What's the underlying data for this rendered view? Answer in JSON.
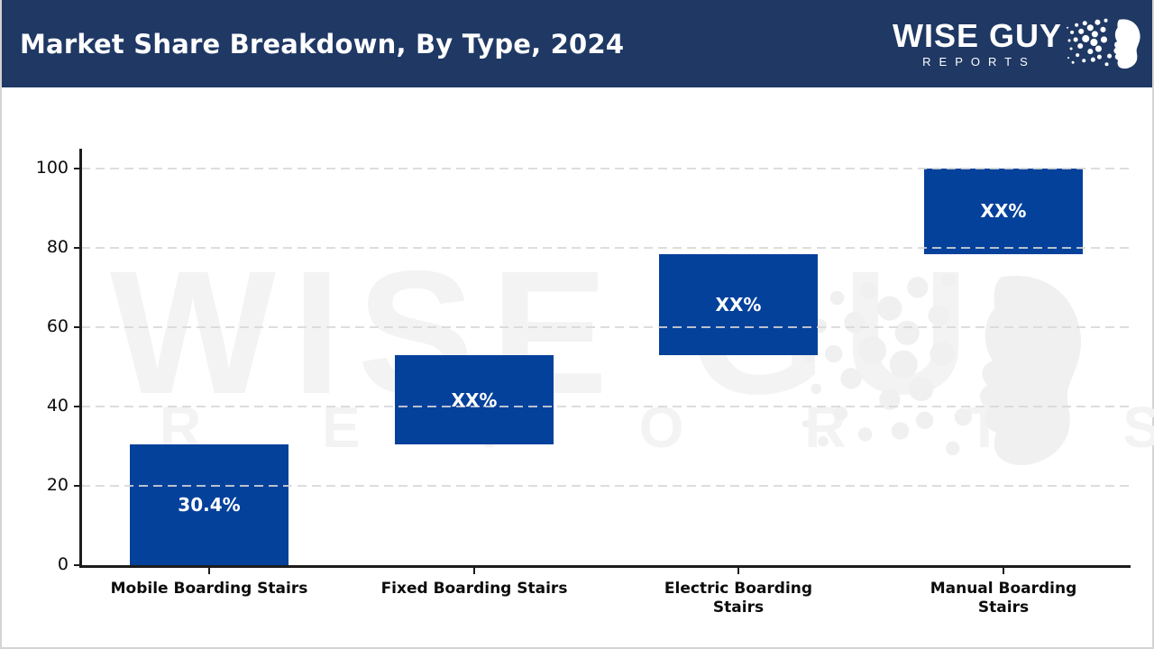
{
  "header": {
    "title": "Market Share Breakdown, By Type, 2024",
    "bg_color": "#1f3864",
    "logo": {
      "line1": "WISE GUY",
      "line2": "REPORTS"
    }
  },
  "watermark": {
    "line1": "WISE GU",
    "line2": "R E P O R T S"
  },
  "chart_data": {
    "type": "bar",
    "subtype": "waterfall",
    "title": "Market Share Breakdown, By Type, 2024",
    "categories": [
      "Mobile Boarding Stairs",
      "Fixed Boarding Stairs",
      "Electric Boarding Stairs",
      "Manual Boarding Stairs"
    ],
    "segments": [
      {
        "category": "Mobile Boarding Stairs",
        "from": 0,
        "to": 30.4,
        "label": "30.4%"
      },
      {
        "category": "Fixed Boarding Stairs",
        "from": 30.4,
        "to": 53,
        "label": "XX%"
      },
      {
        "category": "Electric Boarding Stairs",
        "from": 53,
        "to": 78.5,
        "label": "XX%"
      },
      {
        "category": "Manual Boarding Stairs",
        "from": 78.5,
        "to": 100,
        "label": "XX%"
      }
    ],
    "yticks": [
      0,
      20,
      40,
      60,
      80,
      100
    ],
    "ylim": [
      0,
      105
    ],
    "xlabel": "",
    "ylabel": "",
    "grid": true,
    "legend": "none",
    "bar_color": "#04419b",
    "bar_label_color": "#ffffff",
    "grid_color": "#d7d7d7",
    "axis_color": "#1c1c1c"
  }
}
